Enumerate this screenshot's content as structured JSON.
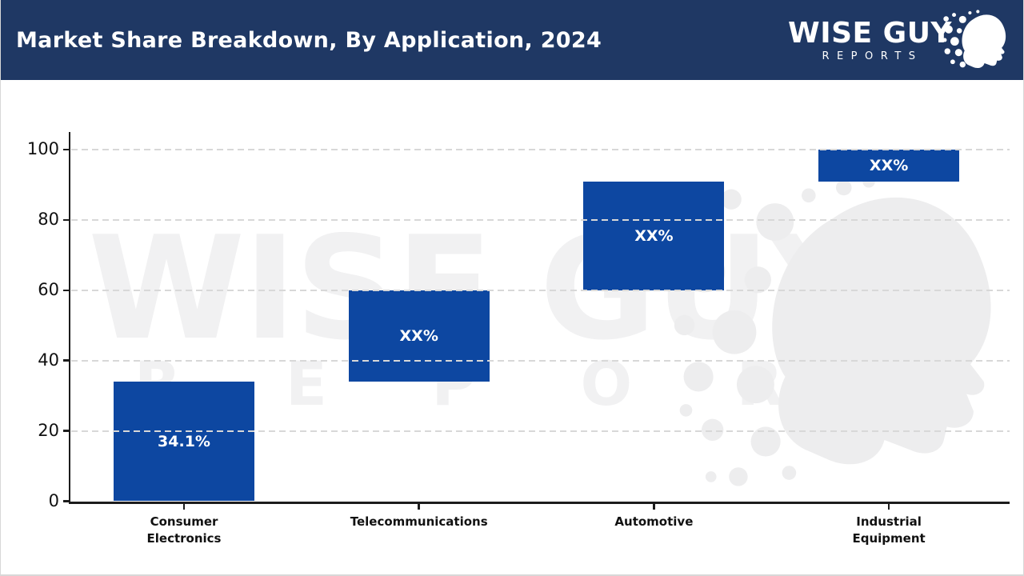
{
  "header": {
    "title": "Market Share Breakdown, By Application, 2024",
    "logo": {
      "line1": "WISE GUY",
      "line2": "REPORTS"
    }
  },
  "watermark": {
    "line1": "WISE GUY",
    "line2": "R E P O R T S"
  },
  "colors": {
    "header_bg": "#1f3864",
    "bar": "#0d47a1",
    "bar_label": "#ffffff",
    "grid": "#d8d8d8",
    "axis": "#1c1c1c",
    "tick_text": "#111111",
    "watermark": "#f1f1f2"
  },
  "chart_data": {
    "type": "bar",
    "subtype": "waterfall-floating-bars",
    "title": "Market Share Breakdown, By Application, 2024",
    "xlabel": "",
    "ylabel": "",
    "categories": [
      "Consumer\nElectronics",
      "Telecommunications",
      "Automotive",
      "Industrial\nEquipment"
    ],
    "segments": [
      {
        "category": "Consumer Electronics",
        "start": 0,
        "end": 34.1,
        "label": "34.1%"
      },
      {
        "category": "Telecommunications",
        "start": 34.1,
        "end": 60,
        "label": "XX%"
      },
      {
        "category": "Automotive",
        "start": 60,
        "end": 91,
        "label": "XX%"
      },
      {
        "category": "Industrial Equipment",
        "start": 91,
        "end": 100,
        "label": "XX%"
      }
    ],
    "yticks": [
      0,
      20,
      40,
      60,
      80,
      100
    ],
    "ylim": [
      0,
      105
    ],
    "grid": "horizontal dashed, drawn over bars",
    "legend": "none"
  }
}
